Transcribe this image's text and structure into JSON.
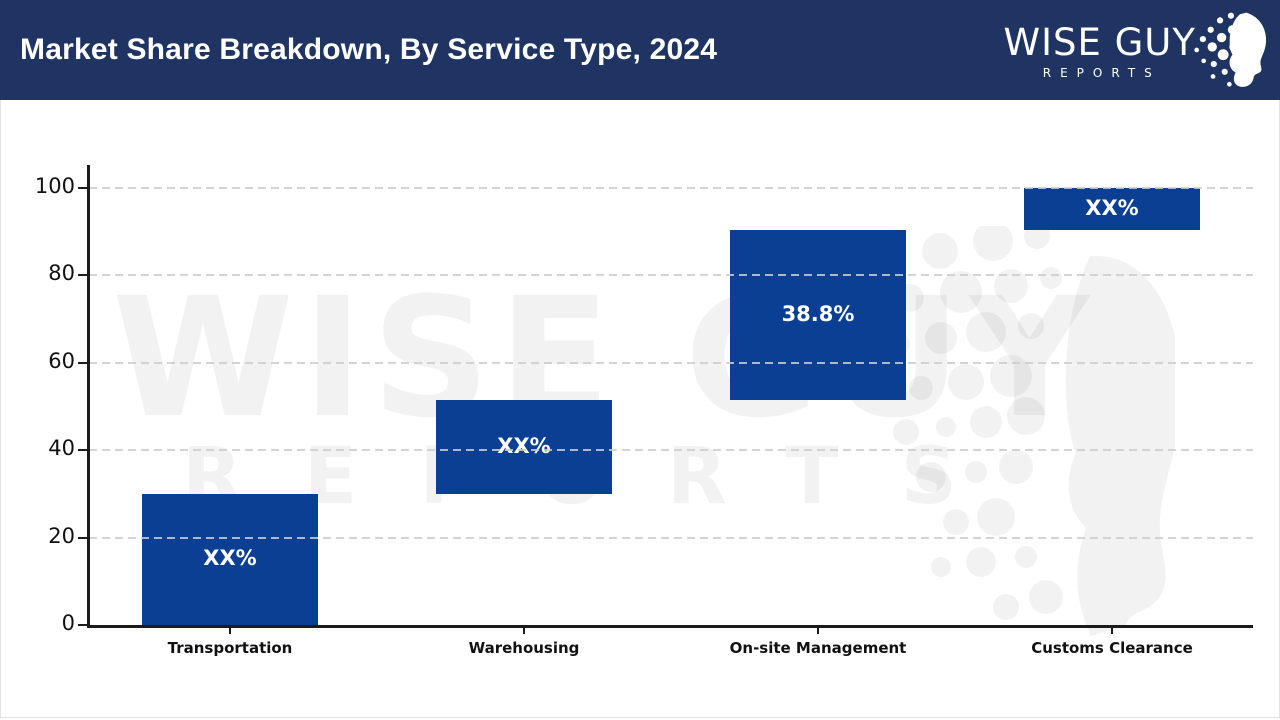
{
  "header": {
    "title": "Market Share Breakdown, By Service Type, 2024",
    "bg_color": "#1f3462",
    "logo": {
      "line1": "WISE GUY",
      "line2": "REPORTS"
    }
  },
  "watermark": {
    "line1": "WISE GUY",
    "line2": "REPORTS"
  },
  "chart_data": {
    "type": "bar",
    "subtype": "waterfall",
    "title": "Market Share Breakdown, By Service Type, 2024",
    "categories": [
      "Transportation",
      "Warehousing",
      "On-site Management",
      "Customs Clearance"
    ],
    "segments": [
      [
        0,
        30
      ],
      [
        30,
        51.4
      ],
      [
        51.4,
        90.2
      ],
      [
        90.2,
        100
      ]
    ],
    "values": [
      30,
      21.4,
      38.8,
      9.8
    ],
    "labels": [
      "XX%",
      "XX%",
      "38.8%",
      "XX%"
    ],
    "bar_color": "#0a3f94",
    "label_color": "#ffffff",
    "xlabel": "",
    "ylabel": "",
    "ylim": [
      0,
      100
    ],
    "yticks": [
      0,
      20,
      40,
      60,
      80,
      100
    ],
    "grid": "horizontal-dashed",
    "legend": "none"
  }
}
